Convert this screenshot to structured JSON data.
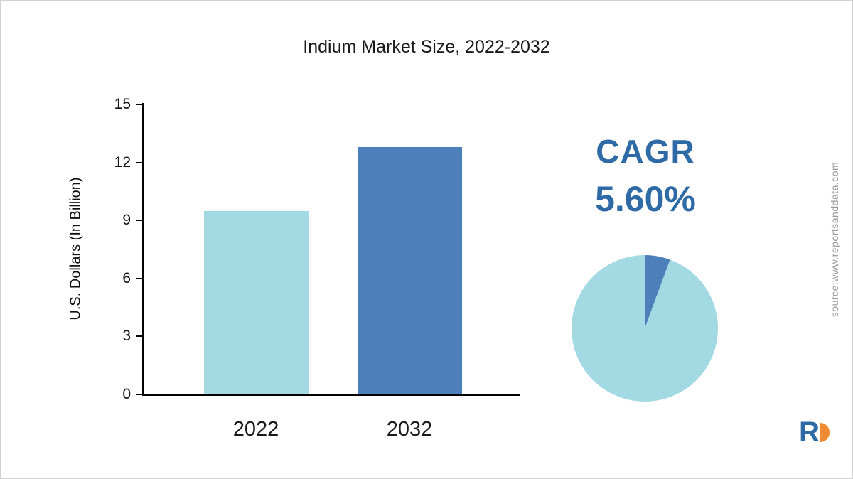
{
  "cagr": {
    "label": "CAGR",
    "value": "5.60%"
  },
  "source": "source:www.reportsanddata.com",
  "logo_text": "R",
  "colors": {
    "accent_blue": "#2e6ba6",
    "bar_light": "#a2d9e2",
    "bar_dark": "#4d80bb",
    "logo_orange": "#ef8b33",
    "axis_black": "#000000",
    "source_gray": "#9a9a9a"
  },
  "chart_data": [
    {
      "type": "bar",
      "title": "Indium Market Size, 2022-2032",
      "categories": [
        "2022",
        "2032"
      ],
      "values": [
        9.5,
        12.8
      ],
      "colors": [
        "#a2d9e2",
        "#4d80bb"
      ],
      "xlabel": "",
      "ylabel": "U.S. Dollars (In Billion)",
      "ylim": [
        0,
        15
      ],
      "yticks": [
        0,
        3,
        6,
        9,
        12,
        15
      ],
      "grid": false,
      "legend": false
    },
    {
      "type": "pie",
      "values": [
        5.6,
        94.4
      ],
      "colors": [
        "#4d80bb",
        "#a2d9e2"
      ],
      "legend": false,
      "annotation": "CAGR 5.60%"
    }
  ]
}
